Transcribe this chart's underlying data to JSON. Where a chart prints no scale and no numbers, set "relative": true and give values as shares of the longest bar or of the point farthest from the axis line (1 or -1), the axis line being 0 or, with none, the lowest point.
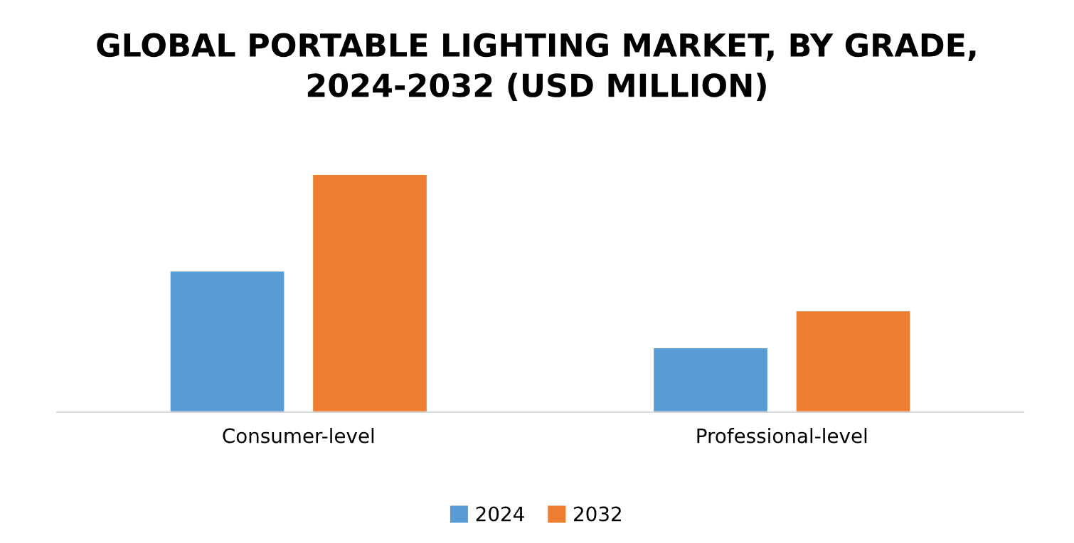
{
  "chart_data": {
    "type": "bar",
    "title": "GLOBAL PORTABLE LIGHTING MARKET, BY GRADE,\n2024-2032 (USD MILLION)",
    "categories": [
      "Consumer-level",
      "Professional-level"
    ],
    "relative": true,
    "series": [
      {
        "name": "2024",
        "color": "#5b9bd5",
        "values": [
          0.593,
          0.269
        ]
      },
      {
        "name": "2032",
        "color": "#ed7d31",
        "values": [
          1,
          0.425
        ]
      }
    ],
    "legend": "bottom",
    "grid": false
  }
}
